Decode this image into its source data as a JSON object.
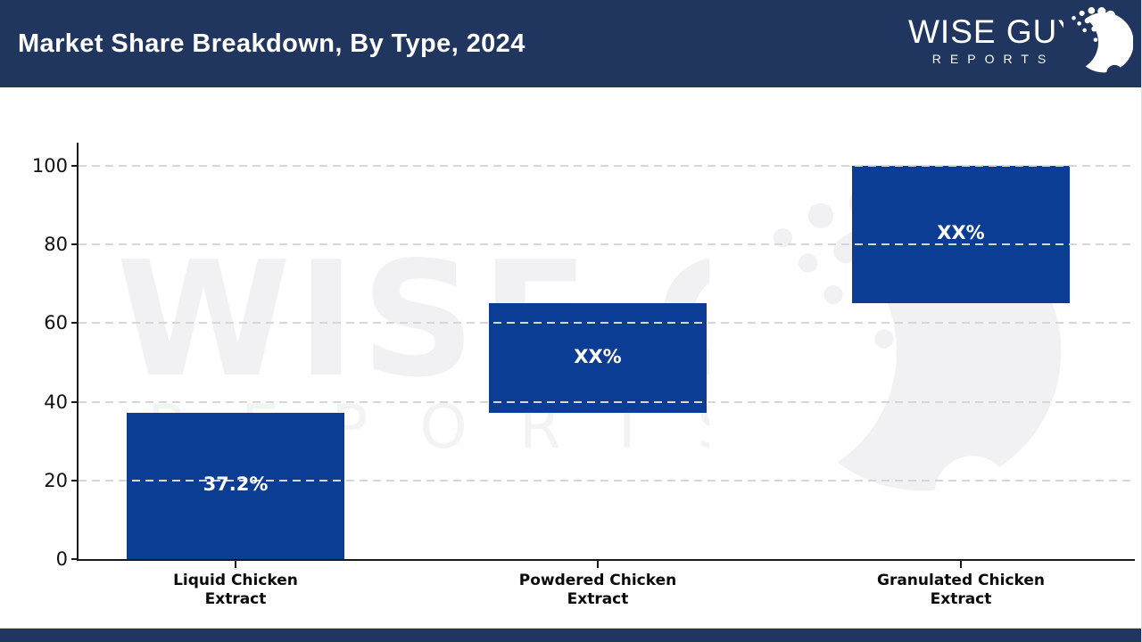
{
  "header": {
    "title": "Market Share Breakdown, By Type, 2024",
    "logo": {
      "line1": "WISE GUY",
      "line2": "REPORTS"
    }
  },
  "watermark": {
    "line1": "WISE GUY",
    "line2": "REPORTS"
  },
  "chart_data": {
    "type": "bar",
    "subtype": "waterfall",
    "title": "Market Share Breakdown, By Type, 2024",
    "xlabel": "",
    "ylabel": "",
    "ylim": [
      0,
      105
    ],
    "yticks": [
      0,
      20,
      40,
      60,
      80,
      100
    ],
    "grid": "horizontal-dashed",
    "legend": "none",
    "categories": [
      "Liquid Chicken Extract",
      "Powdered Chicken Extract",
      "Granulated Chicken Extract"
    ],
    "category_lines": [
      [
        "Liquid Chicken",
        "Extract"
      ],
      [
        "Powdered Chicken",
        "Extract"
      ],
      [
        "Granulated Chicken",
        "Extract"
      ]
    ],
    "series": [
      {
        "name": "Market Share",
        "segments": [
          {
            "category": "Liquid Chicken Extract",
            "start": 0,
            "end": 37.2,
            "label": "37.2%"
          },
          {
            "category": "Powdered Chicken Extract",
            "start": 37.2,
            "end": 65,
            "label": "XX%"
          },
          {
            "category": "Granulated Chicken Extract",
            "start": 65,
            "end": 100,
            "label": "XX%"
          }
        ]
      }
    ]
  },
  "colors": {
    "header_bg": "#21365F",
    "footer_bg": "#21365F",
    "bar": "#0C3D94",
    "bar_label": "#ffffff",
    "grid": "#d7d7d7",
    "axis": "#1a1a1a",
    "watermark": "#f1f1f4"
  }
}
